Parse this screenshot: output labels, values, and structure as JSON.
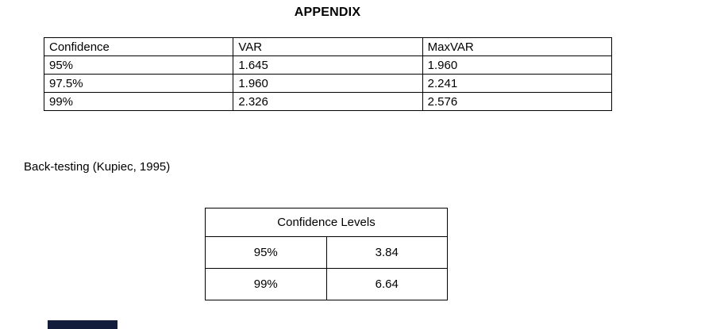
{
  "page": {
    "title": "APPENDIX",
    "back_testing_label": "Back-testing (Kupiec, 1995)"
  },
  "var_table": {
    "headers": [
      "Confidence",
      "VAR",
      "MaxVAR"
    ],
    "rows": [
      [
        "95%",
        "1.645",
        "1.960"
      ],
      [
        "97.5%",
        "1.960",
        "2.241"
      ],
      [
        "99%",
        "2.326",
        "2.576"
      ]
    ]
  },
  "confidence_table": {
    "header": "Confidence Levels",
    "rows": [
      [
        "95%",
        "3.84"
      ],
      [
        "99%",
        "6.64"
      ]
    ]
  },
  "colors": {
    "edge_fragment": "#131c3b",
    "text": "#000000",
    "background": "#ffffff"
  }
}
